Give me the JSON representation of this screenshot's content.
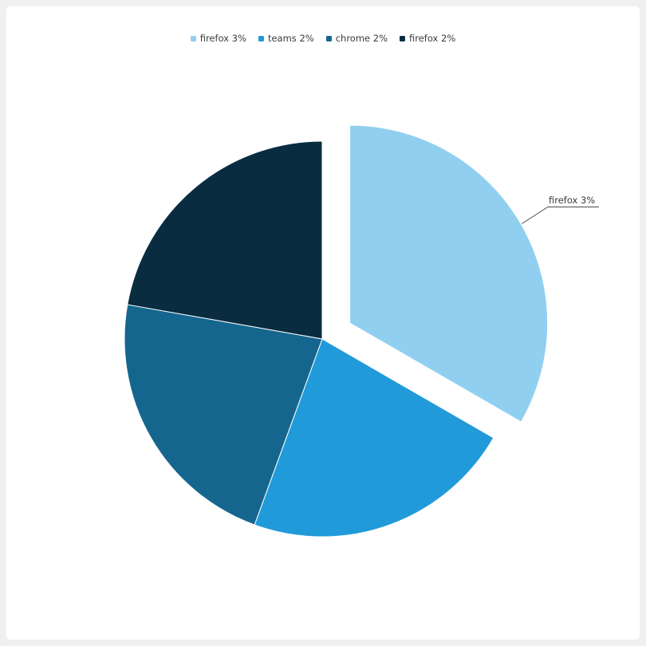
{
  "chart_data": {
    "type": "pie",
    "title": "",
    "legend_position": "top",
    "slices": [
      {
        "name": "firefox",
        "legend_label": "firefox 3%",
        "value": 3,
        "percent_of_total": 33.3,
        "color": "#91CFF1",
        "exploded": true
      },
      {
        "name": "teams",
        "legend_label": "teams 2%",
        "value": 2,
        "percent_of_total": 22.2,
        "color": "#219ADA",
        "exploded": false
      },
      {
        "name": "chrome",
        "legend_label": "chrome 2%",
        "value": 2,
        "percent_of_total": 22.2,
        "color": "#15668F",
        "exploded": false
      },
      {
        "name": "firefox",
        "legend_label": "firefox 2%",
        "value": 2,
        "percent_of_total": 22.2,
        "color": "#0A2C41",
        "exploded": false
      }
    ],
    "annotation": {
      "text": "firefox 3%",
      "target_slice": "firefox 3%"
    }
  }
}
